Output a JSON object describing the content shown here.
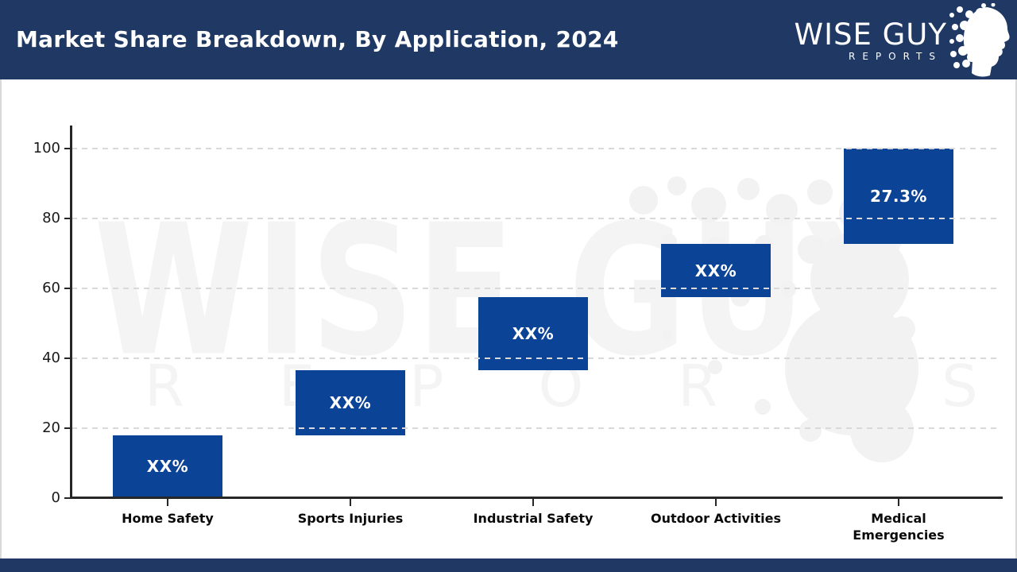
{
  "header": {
    "title": "Market Share Breakdown, By Application, 2024",
    "bg_color": "#1f3864",
    "logo": {
      "line1": "WISE GUY",
      "line2": "REPORTS"
    }
  },
  "watermark": {
    "line1": "WISE GUY",
    "line2": "REPORTS"
  },
  "chart_data": {
    "type": "bar",
    "subtype": "waterfall",
    "title": "Market Share Breakdown, By Application, 2024",
    "categories": [
      "Home Safety",
      "Sports Injuries",
      "Industrial Safety",
      "Outdoor Activities",
      "Medical Emergencies"
    ],
    "category_lines": [
      [
        "Home Safety"
      ],
      [
        "Sports Injuries"
      ],
      [
        "Industrial Safety"
      ],
      [
        "Outdoor Activities"
      ],
      [
        "Medical",
        "Emergencies"
      ]
    ],
    "bars": [
      {
        "category": "Home Safety",
        "label": "XX%",
        "start": 0,
        "end": 18
      },
      {
        "category": "Sports Injuries",
        "label": "XX%",
        "start": 18,
        "end": 36.6
      },
      {
        "category": "Industrial Safety",
        "label": "XX%",
        "start": 36.6,
        "end": 57.5
      },
      {
        "category": "Outdoor Activities",
        "label": "XX%",
        "start": 57.5,
        "end": 72.7
      },
      {
        "category": "Medical Emergencies",
        "label": "27.3%",
        "start": 72.7,
        "end": 100
      }
    ],
    "ylim": [
      0,
      100
    ],
    "yticks": [
      0,
      20,
      40,
      60,
      80,
      100
    ],
    "xlabel": "",
    "ylabel": "",
    "bar_color": "#0b4397",
    "grid": {
      "axis": "y",
      "style": "dashed",
      "color": "#d9d9d9"
    },
    "legend": "none"
  },
  "footer": {
    "bg_color": "#1f3864"
  }
}
